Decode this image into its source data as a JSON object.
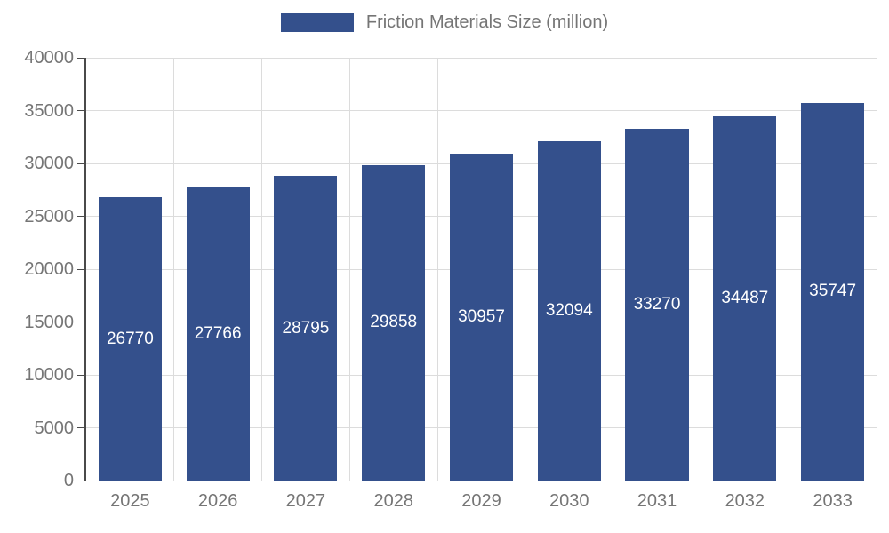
{
  "chart_data": {
    "type": "bar",
    "title": "Friction Materials Size (million)",
    "categories": [
      "2025",
      "2026",
      "2027",
      "2028",
      "2029",
      "2030",
      "2031",
      "2032",
      "2033"
    ],
    "values": [
      26770,
      27766,
      28795,
      29858,
      30957,
      32094,
      33270,
      34487,
      35747
    ],
    "xlabel": "",
    "ylabel": "",
    "ylim": [
      0,
      40000
    ],
    "ytick_step": 5000,
    "grid": "on",
    "legend_position": "top-center",
    "bar_color": "#34508C",
    "value_label_color": "#ffffff",
    "axis_text_color": "#757575",
    "grid_color": "#dcdcdc"
  }
}
